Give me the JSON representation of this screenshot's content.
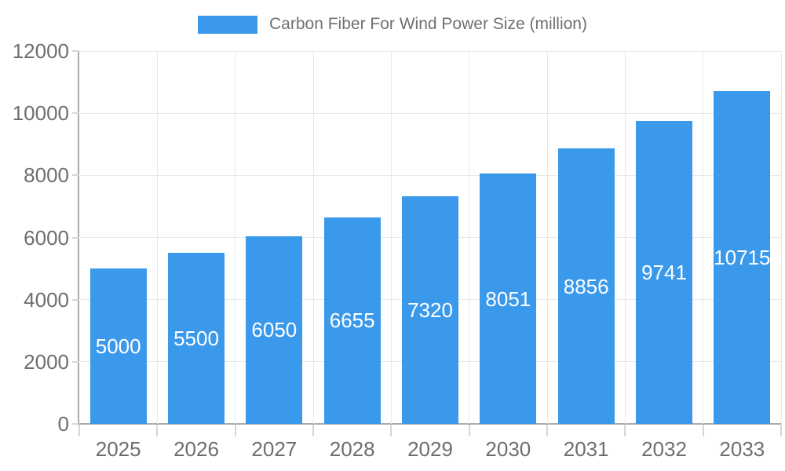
{
  "legend": {
    "label": "Carbon Fiber For Wind Power Size (million)"
  },
  "chart_data": {
    "type": "bar",
    "title": "Carbon Fiber For Wind Power Size (million)",
    "categories": [
      "2025",
      "2026",
      "2027",
      "2028",
      "2029",
      "2030",
      "2031",
      "2032",
      "2033"
    ],
    "values": [
      5000,
      5500,
      6050,
      6655,
      7320,
      8051,
      8856,
      9741,
      10715
    ],
    "series": [
      {
        "name": "Carbon Fiber For Wind Power Size (million)",
        "values": [
          5000,
          5500,
          6050,
          6655,
          7320,
          8051,
          8856,
          9741,
          10715
        ]
      }
    ],
    "xlabel": "",
    "ylabel": "",
    "ylim": [
      0,
      12000
    ],
    "yticks": [
      0,
      2000,
      4000,
      6000,
      8000,
      10000,
      12000
    ],
    "grid": true,
    "legend_position": "top-center",
    "value_labels_position": "inside-center",
    "colors": {
      "bar": "#3B99EC",
      "value_label": "#FFFFFF",
      "axis_line": "#ABABAB",
      "grid_line": "#E8E8E8",
      "tick_mark": "#D6D6D6",
      "axis_text": "#6E6E6E",
      "legend_text": "#707070"
    }
  }
}
